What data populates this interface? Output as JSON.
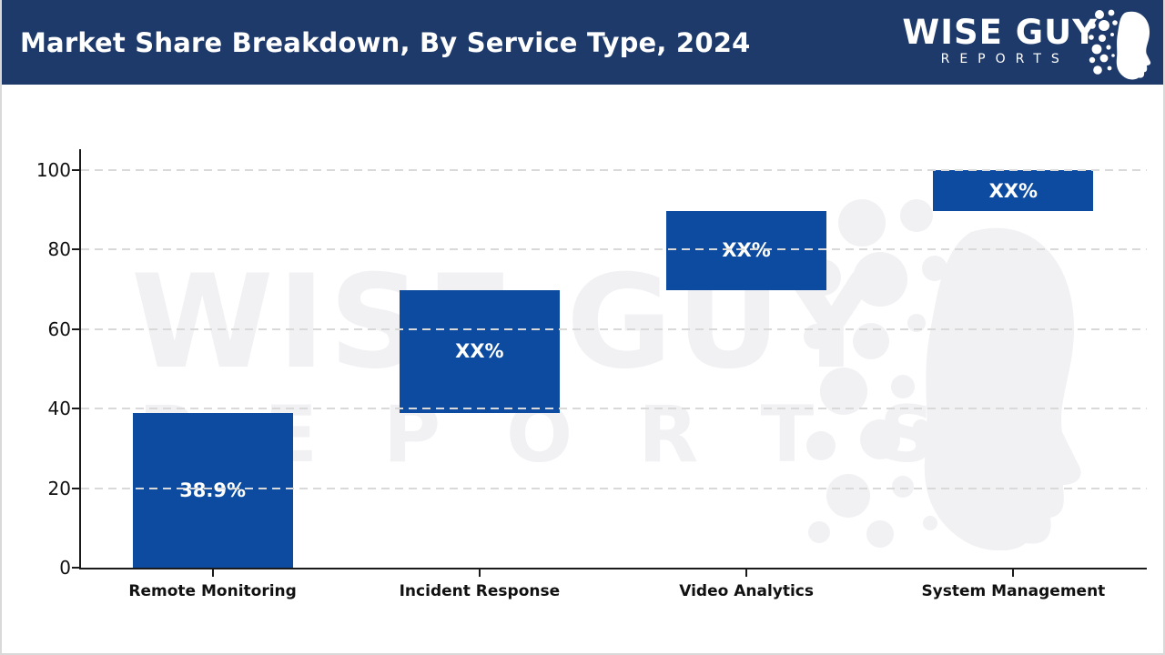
{
  "header": {
    "title": "Market Share Breakdown, By Service Type, 2024",
    "bg_color": "#1e3a6b",
    "logo": {
      "line1": "WISE GUY",
      "line2": "REPORTS"
    }
  },
  "watermark": {
    "line1": "WISE GUY",
    "line2": "REPORTS"
  },
  "chart_data": {
    "type": "bar",
    "subtype": "waterfall",
    "title": "Market Share Breakdown, By Service Type, 2024",
    "categories": [
      "Remote Monitoring",
      "Incident Response",
      "Video Analytics",
      "System Management"
    ],
    "segments": [
      {
        "category": "Remote Monitoring",
        "start": 0,
        "end": 38.9,
        "label": "38.9%"
      },
      {
        "category": "Incident Response",
        "start": 38.9,
        "end": 69.8,
        "label": "XX%"
      },
      {
        "category": "Video Analytics",
        "start": 69.8,
        "end": 89.7,
        "label": "XX%"
      },
      {
        "category": "System Management",
        "start": 89.7,
        "end": 100,
        "label": "XX%"
      }
    ],
    "yticks": [
      0,
      20,
      40,
      60,
      80,
      100
    ],
    "ylim": [
      0,
      105
    ],
    "xlabel": "",
    "ylabel": "",
    "grid": "horizontal-dashed-over-bars",
    "legend": "none",
    "bar_color": "#0c4ba0",
    "bar_label_color": "#ffffff",
    "grid_color": "#d9d9d9",
    "axis_color": "#1a1a1a"
  }
}
